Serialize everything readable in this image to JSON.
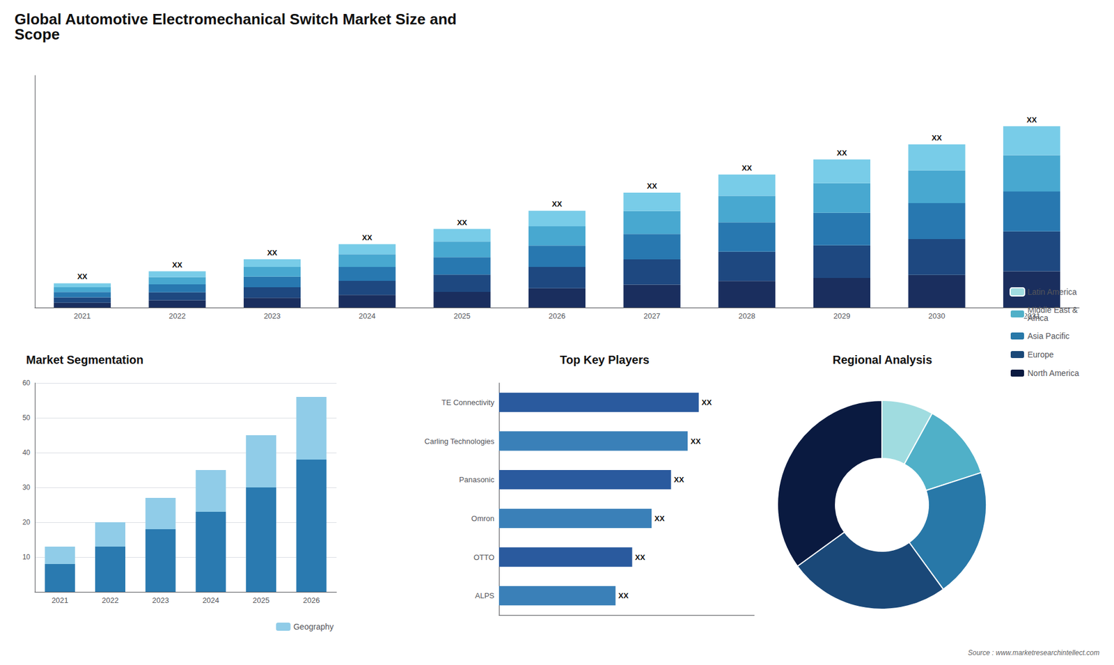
{
  "chart_data": [
    {
      "type": "bar",
      "title": "Global Automotive Electromechanical Switch Market Size and\nScope",
      "annotations": [
        "Source : www.marketresearchintellect.com"
      ],
      "categories": [
        "2021",
        "2022",
        "2023",
        "2024",
        "2025",
        "2026",
        "2027",
        "2028",
        "2029",
        "2030",
        "2031"
      ],
      "stacked": true,
      "series": [
        {
          "color": "#1a2e5e",
          "values": [
            1.6,
            2.4,
            3.2,
            4.2,
            5.2,
            6.4,
            7.6,
            8.8,
            9.8,
            10.8,
            12
          ]
        },
        {
          "color": "#1e4880",
          "values": [
            1.76,
            2.64,
            3.52,
            4.62,
            5.72,
            7.04,
            8.36,
            9.68,
            10.78,
            11.88,
            13.2
          ]
        },
        {
          "color": "#2878b0",
          "values": [
            1.76,
            2.64,
            3.52,
            4.62,
            5.72,
            7.04,
            8.36,
            9.68,
            10.78,
            11.88,
            13.2
          ]
        },
        {
          "color": "#48a8d0",
          "values": [
            1.6,
            2.4,
            3.2,
            4.2,
            5.2,
            6.4,
            7.6,
            8.8,
            9.8,
            10.8,
            12
          ]
        },
        {
          "color": "#78cce8",
          "values": [
            1.28,
            1.92,
            2.56,
            3.36,
            4.16,
            5.12,
            6.08,
            7.04,
            7.84,
            8.64,
            9.6
          ],
          "value_labels": [
            "XX",
            "XX",
            "XX",
            "XX",
            "XX",
            "XX",
            "XX",
            "XX",
            "XX",
            "XX",
            "XX"
          ]
        }
      ],
      "data_labels": true,
      "ylim": [
        0,
        76.8
      ],
      "yticks": [],
      "tick_labels": "x",
      "grid": false
    },
    {
      "type": "bar",
      "title": "Market Segmentation",
      "categories": [
        "2021",
        "2022",
        "2023",
        "2024",
        "2025",
        "2026"
      ],
      "stacked": true,
      "series": [
        {
          "color": "#2a7ab0",
          "values": [
            8,
            13,
            18,
            23,
            30,
            38
          ]
        },
        {
          "name": "Geography",
          "color": "#90cce8",
          "values": [
            5,
            7,
            9,
            12,
            15,
            18
          ]
        }
      ],
      "ylim": [
        0,
        60
      ],
      "yticks": [
        10,
        20,
        30,
        40,
        50,
        60
      ],
      "grid": true,
      "legend": "lower right"
    },
    {
      "type": "bar",
      "title": "Top Key Players",
      "orientation": "horizontal",
      "categories": [
        "TE Connectivity",
        "Carling Technologies",
        "Panasonic",
        "Omron",
        "OTTO",
        "ALPS"
      ],
      "values": [
        0.72,
        0.68,
        0.62,
        0.55,
        0.48,
        0.42
      ],
      "colors": [
        "#2a5a9e",
        "#3a80b8",
        "#2a5a9e",
        "#3a80b8",
        "#2a5a9e",
        "#3a80b8"
      ],
      "value_labels": [
        "XX",
        "XX",
        "XX",
        "XX",
        "XX",
        "XX"
      ],
      "data_labels": true,
      "xlim": [
        0,
        0.92
      ],
      "xticks": [],
      "tick_labels": "y"
    },
    {
      "type": "pie",
      "title": "Regional Analysis",
      "categories": [
        "Latin America",
        "Middle East &\nAfrica",
        "Asia Pacific",
        "Europe",
        "North America"
      ],
      "values": [
        8,
        12,
        20,
        25,
        35
      ],
      "colors": [
        "#a0dce0",
        "#50b0c8",
        "#2878a8",
        "#1a4878",
        "#0a1a40"
      ],
      "legend": "right"
    }
  ]
}
